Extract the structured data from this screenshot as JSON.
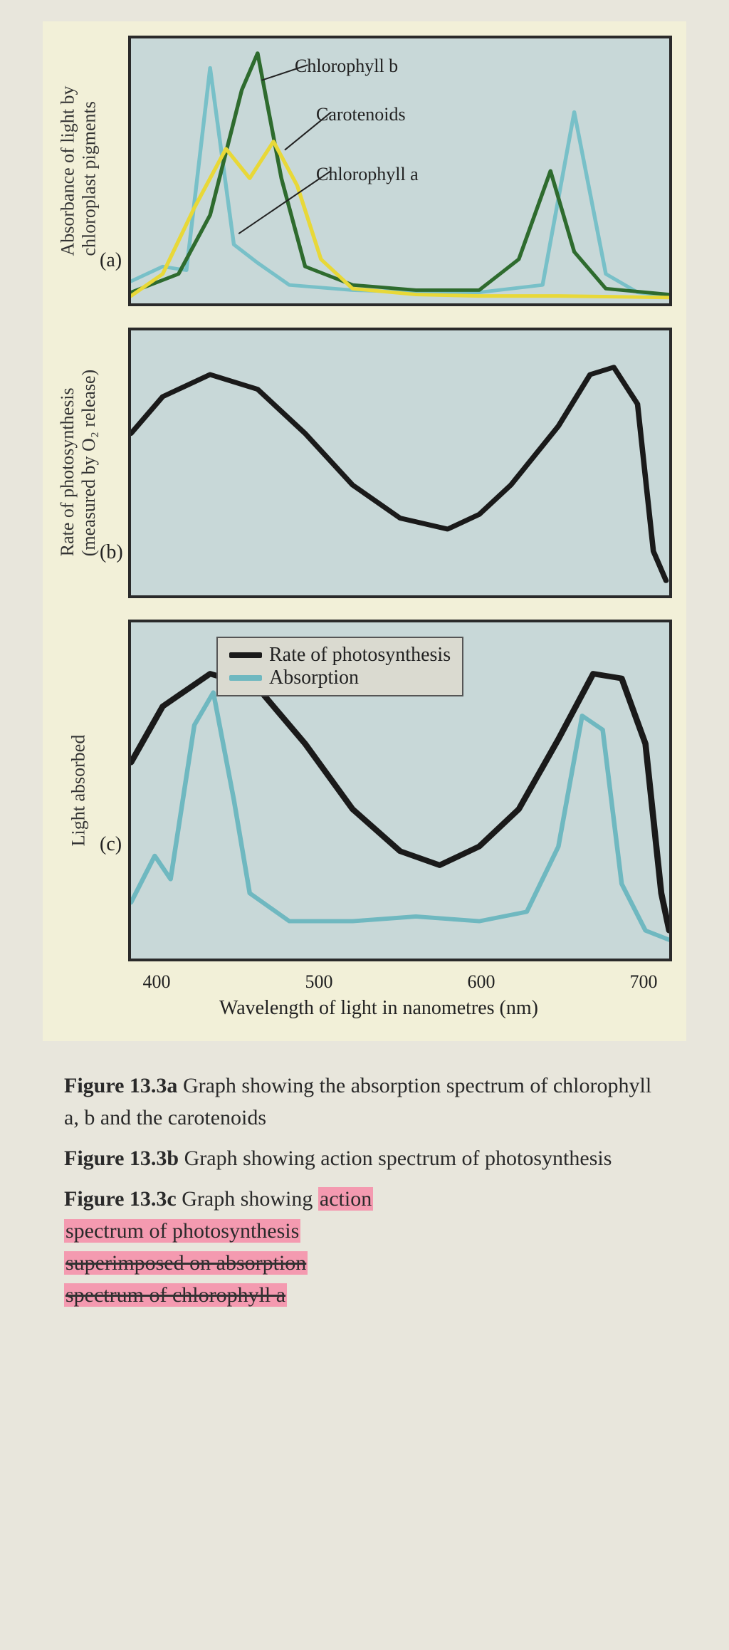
{
  "panel_bg": "#f2f0d8",
  "plot_bg": "#c8d8d8",
  "plot_border": "#2a2a2a",
  "text_color": "#222222",
  "chart_a": {
    "type": "line",
    "ylabel": "Absorbance of light by\nchloroplast pigments",
    "sublabel": "(a)",
    "xlim": [
      380,
      720
    ],
    "labels": {
      "chl_b": "Chlorophyll b",
      "carot": "Carotenoids",
      "chl_a": "Chlorophyll a"
    },
    "series": {
      "chlorophyll_a": {
        "color": "#78c0c8",
        "stroke_width": 5,
        "points": [
          [
            380,
            30
          ],
          [
            400,
            50
          ],
          [
            415,
            45
          ],
          [
            430,
            320
          ],
          [
            445,
            80
          ],
          [
            460,
            55
          ],
          [
            480,
            25
          ],
          [
            520,
            18
          ],
          [
            560,
            15
          ],
          [
            600,
            15
          ],
          [
            640,
            25
          ],
          [
            660,
            260
          ],
          [
            680,
            40
          ],
          [
            700,
            15
          ],
          [
            720,
            10
          ]
        ]
      },
      "chlorophyll_b": {
        "color": "#2e6b2e",
        "stroke_width": 5,
        "points": [
          [
            380,
            15
          ],
          [
            410,
            40
          ],
          [
            430,
            120
          ],
          [
            450,
            290
          ],
          [
            460,
            340
          ],
          [
            475,
            170
          ],
          [
            490,
            50
          ],
          [
            520,
            25
          ],
          [
            560,
            18
          ],
          [
            600,
            18
          ],
          [
            625,
            60
          ],
          [
            645,
            180
          ],
          [
            660,
            70
          ],
          [
            680,
            20
          ],
          [
            720,
            12
          ]
        ]
      },
      "carotenoids": {
        "color": "#e8d838",
        "stroke_width": 5,
        "points": [
          [
            380,
            10
          ],
          [
            400,
            40
          ],
          [
            420,
            130
          ],
          [
            440,
            210
          ],
          [
            455,
            170
          ],
          [
            470,
            220
          ],
          [
            485,
            160
          ],
          [
            500,
            60
          ],
          [
            520,
            20
          ],
          [
            560,
            12
          ],
          [
            600,
            10
          ],
          [
            650,
            10
          ],
          [
            720,
            8
          ]
        ]
      }
    }
  },
  "chart_b": {
    "type": "line",
    "ylabel": "Rate of photosynthesis\n(measured by O₂ release)",
    "sublabel": "(b)",
    "xlim": [
      380,
      720
    ],
    "series": {
      "action": {
        "color": "#1a1a1a",
        "stroke_width": 7,
        "points": [
          [
            380,
            220
          ],
          [
            400,
            270
          ],
          [
            430,
            300
          ],
          [
            460,
            280
          ],
          [
            490,
            220
          ],
          [
            520,
            150
          ],
          [
            550,
            105
          ],
          [
            580,
            90
          ],
          [
            600,
            110
          ],
          [
            620,
            150
          ],
          [
            650,
            230
          ],
          [
            670,
            300
          ],
          [
            685,
            310
          ],
          [
            700,
            260
          ],
          [
            710,
            60
          ],
          [
            718,
            20
          ]
        ]
      }
    }
  },
  "chart_c": {
    "type": "line",
    "ylabel": "Light absorbed",
    "sublabel": "(c)",
    "xlim": [
      380,
      720
    ],
    "xticks": [
      400,
      500,
      600,
      700
    ],
    "xlabel": "Wavelength of light in nanometres (nm)",
    "legend": {
      "rate": {
        "label": "Rate of photosynthesis",
        "color": "#1a1a1a"
      },
      "abs": {
        "label": "Absorption",
        "color": "#6fb8c0"
      }
    },
    "series": {
      "rate": {
        "color": "#1a1a1a",
        "stroke_width": 8,
        "points": [
          [
            380,
            210
          ],
          [
            400,
            270
          ],
          [
            430,
            305
          ],
          [
            460,
            290
          ],
          [
            490,
            230
          ],
          [
            520,
            160
          ],
          [
            550,
            115
          ],
          [
            575,
            100
          ],
          [
            600,
            120
          ],
          [
            625,
            160
          ],
          [
            650,
            235
          ],
          [
            672,
            305
          ],
          [
            690,
            300
          ],
          [
            705,
            230
          ],
          [
            715,
            70
          ],
          [
            720,
            30
          ]
        ]
      },
      "absorption": {
        "color": "#6fb8c0",
        "stroke_width": 6,
        "points": [
          [
            380,
            60
          ],
          [
            395,
            110
          ],
          [
            405,
            85
          ],
          [
            420,
            250
          ],
          [
            432,
            285
          ],
          [
            445,
            170
          ],
          [
            455,
            70
          ],
          [
            480,
            40
          ],
          [
            520,
            40
          ],
          [
            560,
            45
          ],
          [
            600,
            40
          ],
          [
            630,
            50
          ],
          [
            650,
            120
          ],
          [
            665,
            260
          ],
          [
            678,
            245
          ],
          [
            690,
            80
          ],
          [
            705,
            30
          ],
          [
            720,
            20
          ]
        ]
      }
    }
  },
  "captions": {
    "a_head": "Figure 13.3a",
    "a_body": "Graph showing the absorption spectrum of chlorophyll a, b and the carotenoids",
    "b_head": "Figure 13.3b",
    "b_body": "Graph showing action spectrum of photosynthesis",
    "c_head": "Figure 13.3c",
    "c_body_1": "Graph showing ",
    "c_hl_1": "action",
    "c_hl_2": "spectrum of photosynthesis",
    "c_hl_3": "superimposed on absorption",
    "c_hl_4": "spectrum of chlorophyll a"
  }
}
